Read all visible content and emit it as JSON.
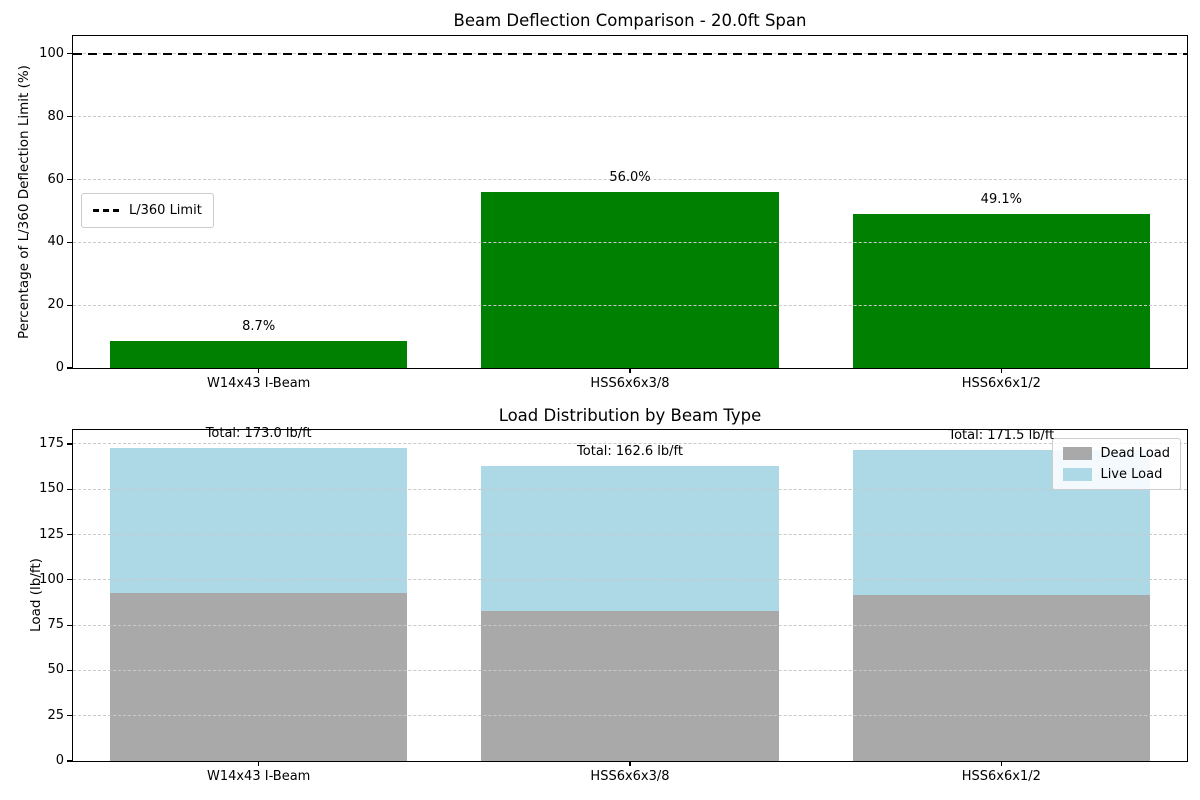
{
  "figure": {
    "background": "#ffffff"
  },
  "chart_data": [
    {
      "type": "bar",
      "title": "Beam Deflection Comparison - 20.0ft Span",
      "ylabel": "Percentage of L/360 Deflection Limit (%)",
      "categories": [
        "W14x43 I-Beam",
        "HSS6x6x3/8",
        "HSS6x6x1/2"
      ],
      "values": [
        8.7,
        56.0,
        49.1
      ],
      "bar_labels": [
        "8.7%",
        "56.0%",
        "49.1%"
      ],
      "bar_color": "#008000",
      "yticks": [
        0,
        20,
        40,
        60,
        80,
        100
      ],
      "ylim": [
        0,
        105.7
      ],
      "grid": "dashed-horizontal",
      "ref_line": {
        "value": 100,
        "label": "L/360 Limit",
        "color": "#000000",
        "style": "dashed"
      },
      "legend": {
        "position": "center-left",
        "items": [
          {
            "label": "L/360 Limit",
            "swatch": "dashed-line",
            "color": "#000000"
          }
        ]
      }
    },
    {
      "type": "bar",
      "subtype": "stacked",
      "title": "Load Distribution by Beam Type",
      "ylabel": "Load (lb/ft)",
      "categories": [
        "W14x43 I-Beam",
        "HSS6x6x3/8",
        "HSS6x6x1/2"
      ],
      "series": [
        {
          "name": "Dead Load",
          "color": "#a9a9a9",
          "values": [
            93.0,
            82.6,
            91.5
          ]
        },
        {
          "name": "Live Load",
          "color": "#add8e6",
          "values": [
            80.0,
            80.0,
            80.0
          ]
        }
      ],
      "totals": [
        "Total: 173.0 lb/ft",
        "Total: 162.6 lb/ft",
        "Total: 171.5 lb/ft"
      ],
      "yticks": [
        0,
        25,
        50,
        75,
        100,
        125,
        150,
        175
      ],
      "ylim": [
        0,
        182.7
      ],
      "grid": "dashed-horizontal",
      "legend": {
        "position": "top-right",
        "items": [
          {
            "label": "Dead Load",
            "color": "#a9a9a9"
          },
          {
            "label": "Live Load",
            "color": "#add8e6"
          }
        ]
      }
    }
  ]
}
